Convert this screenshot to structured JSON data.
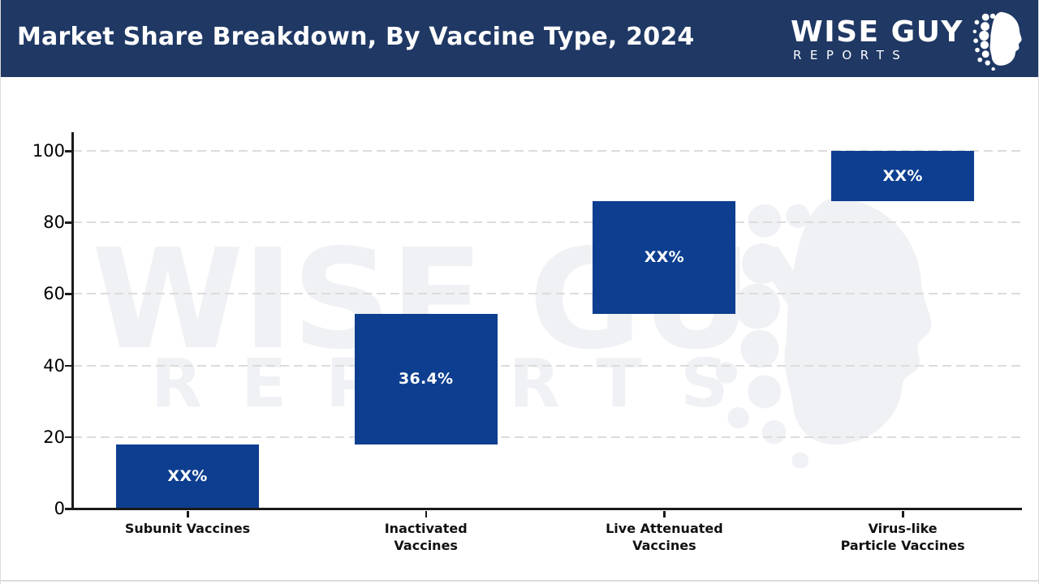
{
  "page": {
    "background": "#ffffff",
    "border_color": "#dcdcdc"
  },
  "header": {
    "title": "Market Share Breakdown, By Vaccine Type, 2024",
    "background": "#1f3864",
    "text_color": "#ffffff",
    "logo": {
      "wordmark": "WISE GUY",
      "subtext": "REPORTS"
    }
  },
  "watermark": {
    "line1": "WISE GUY",
    "line2": "REPORTS"
  },
  "chart_data": {
    "type": "bar",
    "subtype": "floating-segment-waterfall",
    "title": "Market Share Breakdown, By Vaccine Type, 2024",
    "categories": [
      "Subunit Vaccines",
      "Inactivated Vaccines",
      "Live Attenuated Vaccines",
      "Virus-like Particle Vaccines"
    ],
    "categories_lines": [
      [
        "Subunit Vaccines"
      ],
      [
        "Inactivated",
        "Vaccines"
      ],
      [
        "Live Attenuated",
        "Vaccines"
      ],
      [
        "Virus-like",
        "Particle Vaccines"
      ]
    ],
    "bars": [
      {
        "category": "Subunit Vaccines",
        "start": 0,
        "end": 18,
        "size": 18,
        "label": "XX%"
      },
      {
        "category": "Inactivated Vaccines",
        "start": 18,
        "end": 54.4,
        "size": 36.4,
        "label": "36.4%"
      },
      {
        "category": "Live Attenuated Vaccines",
        "start": 54.4,
        "end": 86,
        "size": 31.6,
        "label": "XX%"
      },
      {
        "category": "Virus-like Particle Vaccines",
        "start": 86,
        "end": 100,
        "size": 14,
        "label": "XX%"
      }
    ],
    "xlabel": "",
    "ylabel": "",
    "ylim": [
      0,
      105
    ],
    "yticks": [
      0,
      20,
      40,
      60,
      80,
      100
    ],
    "grid": {
      "axis": "y",
      "style": "dashed",
      "color": "#dcdcdc"
    },
    "legend": "none",
    "bar_color": "#0d3e8f",
    "bar_label_color": "#ffffff",
    "axis_color": "#1a1a1a"
  }
}
